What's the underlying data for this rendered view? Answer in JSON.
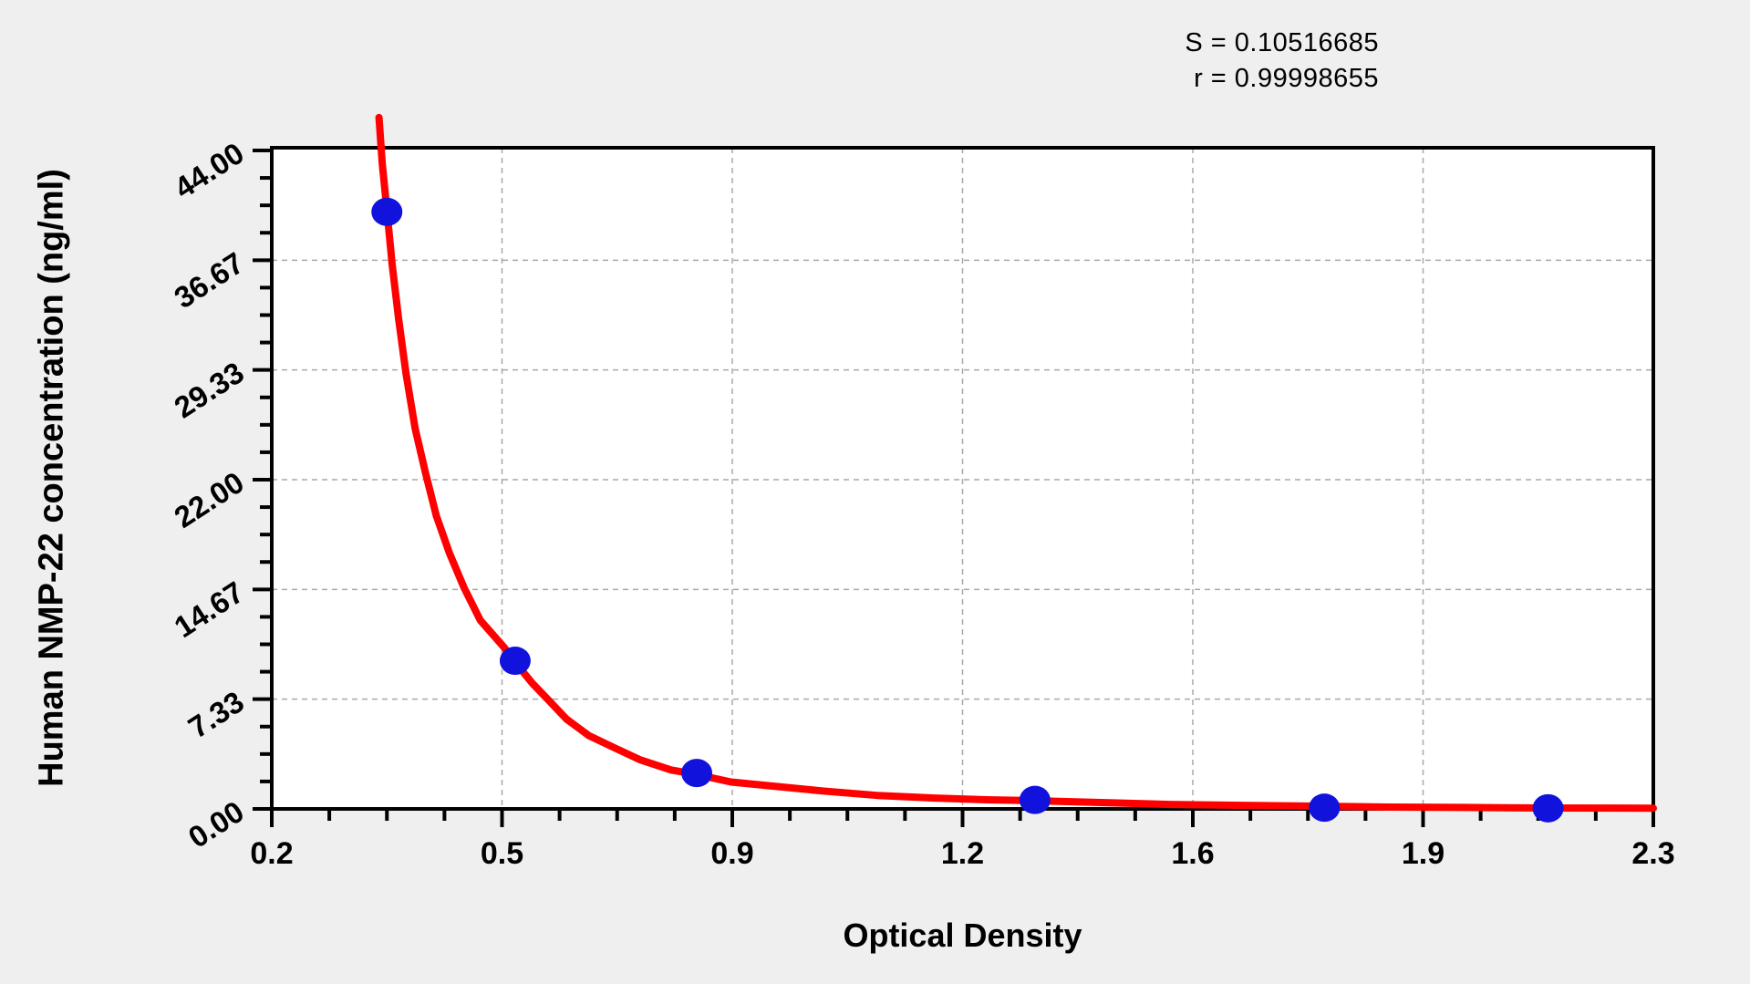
{
  "annotations": {
    "s_label": "S = 0.10516685",
    "r_label": "r = 0.99998655"
  },
  "chart_data": {
    "type": "scatter",
    "title": "",
    "x_axis": {
      "label": "Optical Density",
      "tick_labels": [
        "0.2",
        "0.5",
        "0.9",
        "1.2",
        "1.6",
        "1.9",
        "2.3"
      ],
      "min": 0.2,
      "max": 2.3,
      "minor_divisions_per_major": 4,
      "grid": "dashed"
    },
    "y_axis": {
      "label": "Human NMP-22 concentration (ng/ml)",
      "tick_labels": [
        "0.00",
        "7.33",
        "14.67",
        "22.00",
        "29.33",
        "36.67",
        "44.00"
      ],
      "min": 0,
      "max": 44,
      "minor_divisions_per_major": 4,
      "grid": "dashed"
    },
    "stats": {
      "S": "0.10516685",
      "r": "0.99998655"
    },
    "points": [
      {
        "od": 0.375,
        "conc": 39.9
      },
      {
        "od": 0.57,
        "conc": 9.9
      },
      {
        "od": 0.846,
        "conc": 2.4
      },
      {
        "od": 1.36,
        "conc": 0.6
      },
      {
        "od": 1.8,
        "conc": 0.08
      },
      {
        "od": 2.14,
        "conc": 0.04
      }
    ],
    "fit_curve": [
      [
        0.363,
        46.2
      ],
      [
        0.368,
        43.1
      ],
      [
        0.375,
        40.0
      ],
      [
        0.383,
        36.4
      ],
      [
        0.393,
        32.7
      ],
      [
        0.404,
        29.1
      ],
      [
        0.418,
        25.4
      ],
      [
        0.434,
        22.4
      ],
      [
        0.45,
        19.6
      ],
      [
        0.47,
        17.1
      ],
      [
        0.492,
        14.8
      ],
      [
        0.517,
        12.6
      ],
      [
        0.553,
        10.8
      ],
      [
        0.57,
        9.8
      ],
      [
        0.596,
        8.4
      ],
      [
        0.62,
        7.3
      ],
      [
        0.648,
        6.0
      ],
      [
        0.682,
        4.9
      ],
      [
        0.72,
        4.1
      ],
      [
        0.759,
        3.3
      ],
      [
        0.807,
        2.6
      ],
      [
        0.846,
        2.3
      ],
      [
        0.898,
        1.8
      ],
      [
        0.967,
        1.5
      ],
      [
        1.037,
        1.2
      ],
      [
        1.12,
        0.9
      ],
      [
        1.203,
        0.73
      ],
      [
        1.287,
        0.61
      ],
      [
        1.362,
        0.55
      ],
      [
        1.454,
        0.43
      ],
      [
        1.565,
        0.3
      ],
      [
        1.676,
        0.24
      ],
      [
        1.791,
        0.18
      ],
      [
        1.898,
        0.12
      ],
      [
        2.009,
        0.1
      ],
      [
        2.135,
        0.06
      ],
      [
        2.3,
        0.05
      ]
    ],
    "colors": {
      "curve": "#ff0000",
      "points": "#1212dd",
      "grid": "#a8a8a8",
      "axis": "#000000",
      "background": "#efefef",
      "plot_background": "#ffffff"
    },
    "legend": "none"
  }
}
